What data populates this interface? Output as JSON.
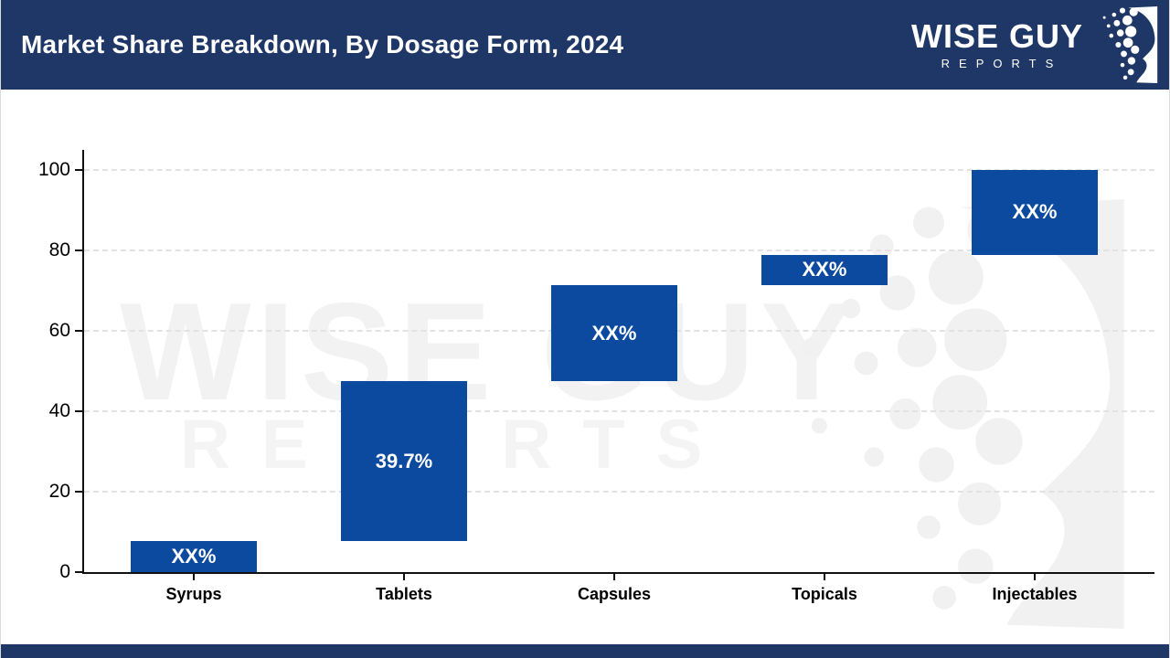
{
  "header": {
    "title": "Market Share Breakdown, By Dosage Form, 2024",
    "bg_color": "#1f3766",
    "logo": {
      "line1": "WISE GUY",
      "line2": "REPORTS"
    }
  },
  "watermark": {
    "line1": "WISE GUY",
    "line2": "REPORTS"
  },
  "footer": {
    "bg_color": "#1f3766"
  },
  "chart_data": {
    "type": "bar",
    "subtype": "floating-waterfall",
    "title": "Market Share Breakdown, By Dosage Form, 2024",
    "categories": [
      "Syrups",
      "Tablets",
      "Capsules",
      "Topicals",
      "Injectables"
    ],
    "series": [
      {
        "name": "Market Share (%)",
        "segments": [
          {
            "category": "Syrups",
            "start": 0,
            "end": 7.7,
            "label": "XX%"
          },
          {
            "category": "Tablets",
            "start": 7.7,
            "end": 47.4,
            "label": "39.7%"
          },
          {
            "category": "Capsules",
            "start": 47.4,
            "end": 71.4,
            "label": "XX%"
          },
          {
            "category": "Topicals",
            "start": 71.4,
            "end": 78.9,
            "label": "XX%"
          },
          {
            "category": "Injectables",
            "start": 78.9,
            "end": 100,
            "label": "XX%"
          }
        ]
      }
    ],
    "y_ticks": [
      0,
      20,
      40,
      60,
      80,
      100
    ],
    "ylim": [
      0,
      105
    ],
    "grid": "dashed-horizontal",
    "legend": "none",
    "xlabel": "",
    "ylabel": "",
    "bar_color": "#0b4a9f",
    "bar_label_color": "#ffffff",
    "axis_color": "#111111",
    "gridline_color": "#e2e2e2"
  }
}
